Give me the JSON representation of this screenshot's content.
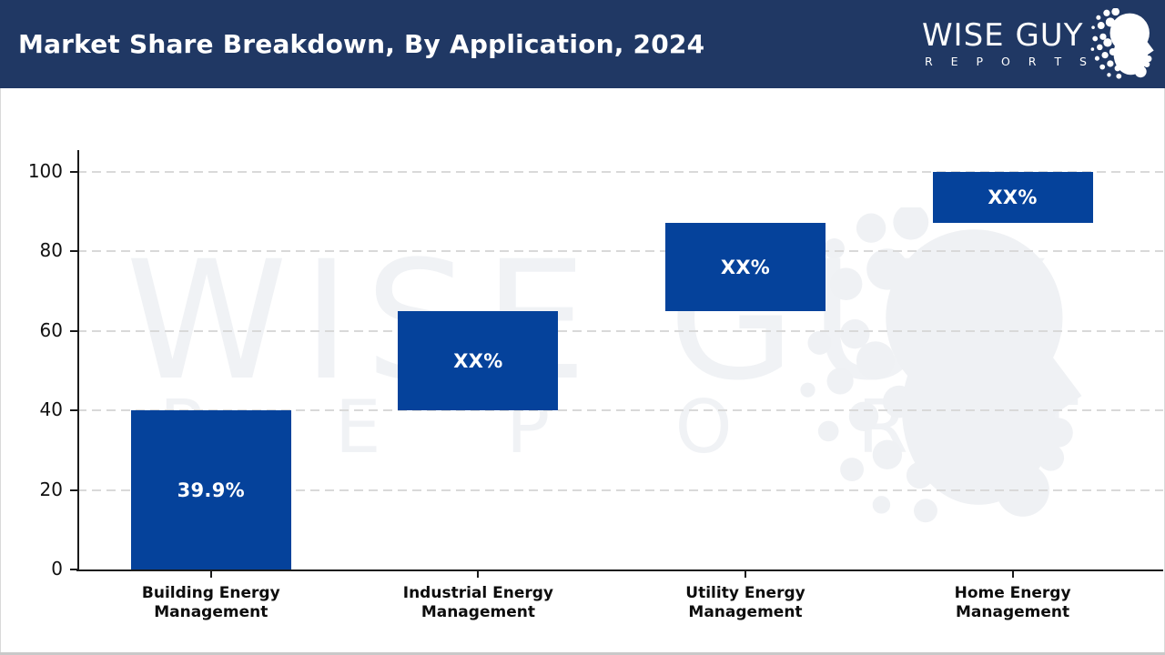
{
  "header": {
    "title": "Market Share Breakdown, By Application, 2024",
    "bg_color": "#203864",
    "logo": {
      "wordmark": "WISE GUY",
      "subtext": "R E P O R T S"
    }
  },
  "watermark": {
    "wordmark": "WISE GUY",
    "subtext": "R E P O R T S"
  },
  "chart_data": {
    "type": "bar",
    "variant": "waterfall",
    "title": "Market Share Breakdown, By Application, 2024",
    "xlabel": "",
    "ylabel": "",
    "ylim": [
      0,
      100
    ],
    "yticks": [
      0,
      20,
      40,
      60,
      80,
      100
    ],
    "grid": "horizontal-dashed",
    "gridline_color": "#d9d9d9",
    "axis_color": "#1a1a1a",
    "bar_color": "#05429B",
    "bar_label_color": "#ffffff",
    "categories": [
      "Building Energy Management",
      "Industrial Energy Management",
      "Utility Energy Management",
      "Home Energy Management"
    ],
    "bars": [
      {
        "category": "Building Energy Management",
        "start": 0,
        "end": 39.9,
        "label": "39.9%"
      },
      {
        "category": "Industrial Energy Management",
        "start": 39.9,
        "end": 65,
        "label": "XX%"
      },
      {
        "category": "Utility Energy Management",
        "start": 65,
        "end": 87,
        "label": "XX%"
      },
      {
        "category": "Home Energy Management",
        "start": 87,
        "end": 100,
        "label": "XX%"
      }
    ]
  }
}
